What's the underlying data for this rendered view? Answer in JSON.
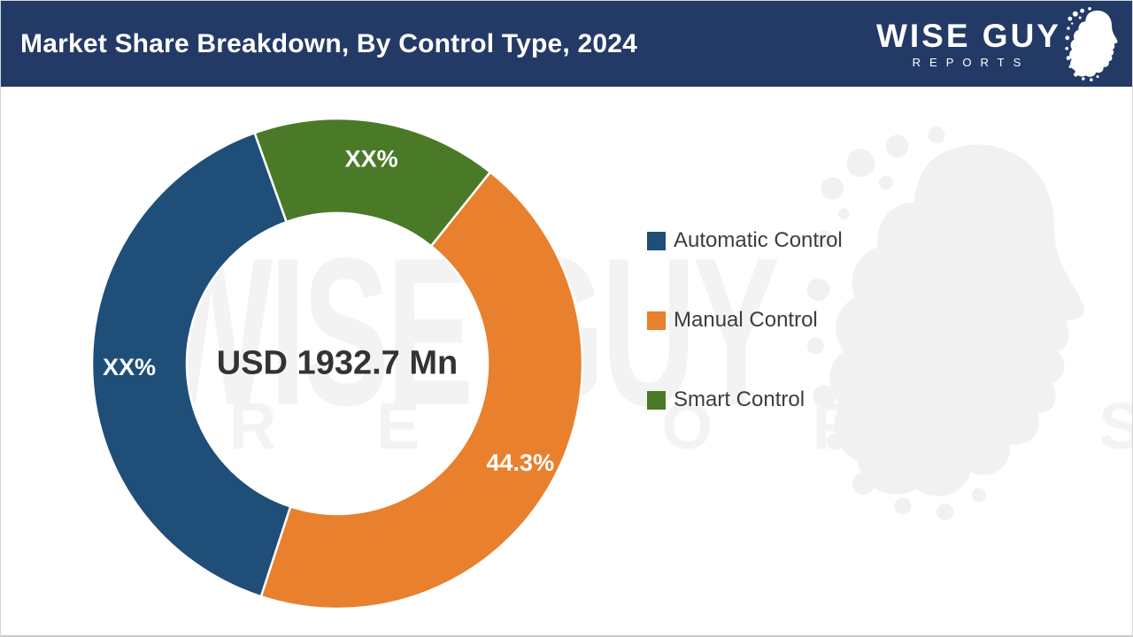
{
  "header": {
    "title": "Market Share Breakdown, By Control Type, 2024",
    "bg_color": "#243a66",
    "logo": {
      "line1": "WISE GUY",
      "line2": "REPORTS"
    }
  },
  "chart_data": {
    "type": "pie",
    "subtype": "donut",
    "title": "Market Share Breakdown, By Control Type, 2024",
    "center_label": "USD 1932.7 Mn",
    "legend_position": "right",
    "start_angle_deg": 198.1,
    "slices": [
      {
        "name": "Automatic Control",
        "display_label": "XX%",
        "share_pct_est": 39.5,
        "color": "#1f4e79"
      },
      {
        "name": "Smart Control",
        "display_label": "XX%",
        "share_pct_est": 16.2,
        "color": "#4a7a28"
      },
      {
        "name": "Manual Control",
        "display_label": "44.3%",
        "share_pct_est": 44.3,
        "color": "#e8802e"
      }
    ]
  },
  "legend": {
    "items": [
      {
        "label": "Automatic Control",
        "color": "#1f4e79"
      },
      {
        "label": "Manual Control",
        "color": "#e8802e"
      },
      {
        "label": "Smart Control",
        "color": "#4a7a28"
      }
    ]
  },
  "watermark": {
    "line1": "WISE GUY",
    "line2": "R E P O R T S"
  }
}
